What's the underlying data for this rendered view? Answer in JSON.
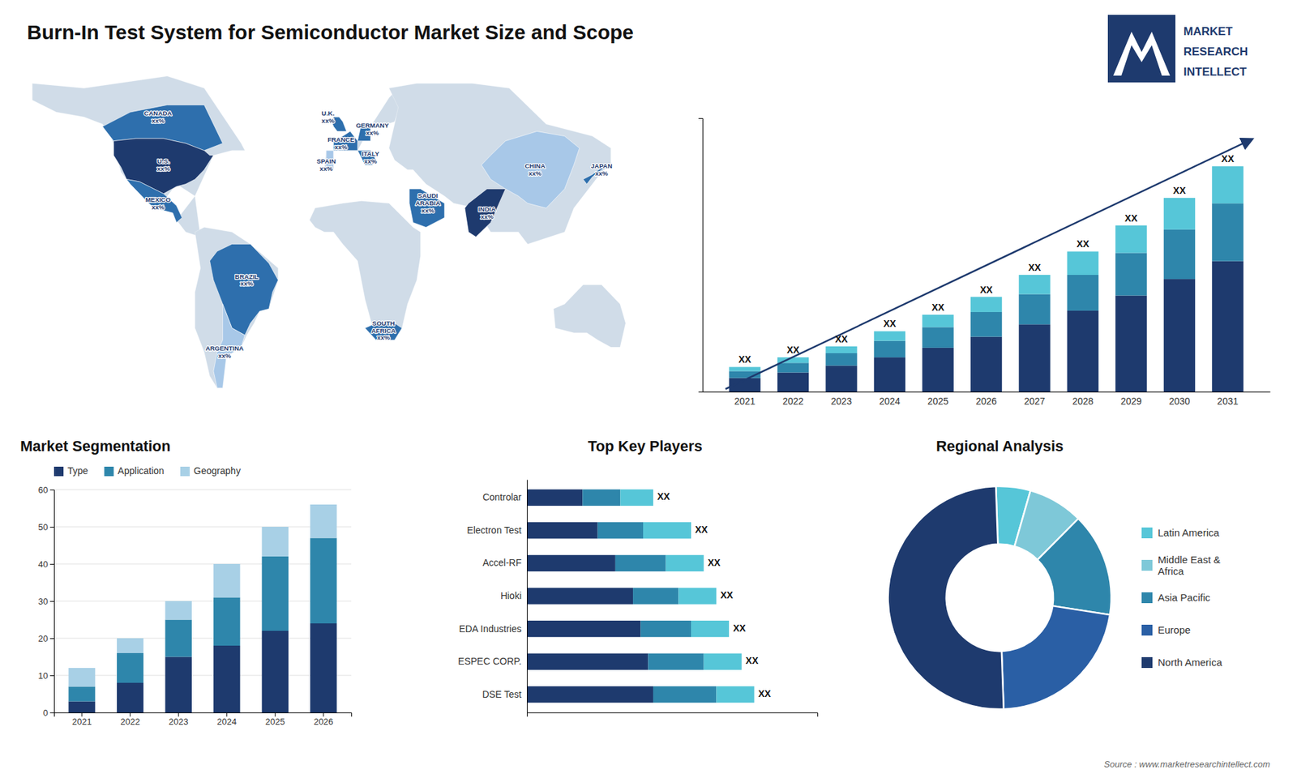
{
  "annotations": [
    "Source : www.marketresearchintellect.com",
    "MARKET",
    "RESEARCH",
    "INTELLECT"
  ],
  "chart_data": [
    {
      "type": "bar",
      "title": "Burn-In Test System for Semiconductor Market Size and Scope",
      "categories": [
        "2021",
        "2022",
        "2023",
        "2024",
        "2025",
        "2026",
        "2027",
        "2028",
        "2029",
        "2030",
        "2031"
      ],
      "series": [
        {
          "color": "#1e3a6e",
          "values": [
            1.0,
            1.4,
            1.9,
            2.5,
            3.2,
            4.0,
            4.9,
            5.9,
            7.0,
            8.2,
            9.5
          ]
        },
        {
          "color": "#2e86ab",
          "values": [
            0.5,
            0.7,
            0.9,
            1.2,
            1.5,
            1.8,
            2.2,
            2.6,
            3.1,
            3.6,
            4.2
          ]
        },
        {
          "color": "#56c6d8",
          "values": [
            0.3,
            0.4,
            0.5,
            0.7,
            0.9,
            1.1,
            1.4,
            1.7,
            2.0,
            2.3,
            2.7
          ]
        }
      ],
      "stacked": true,
      "ylim": [
        0,
        19.9
      ],
      "tick_labels": "x",
      "annotations": [
        "XX",
        "XX",
        "XX",
        "XX",
        "XX",
        "XX",
        "XX",
        "XX",
        "XX",
        "XX",
        "XX"
      ]
    },
    {
      "type": "bar",
      "title": "Market Segmentation",
      "categories": [
        "2021",
        "2022",
        "2023",
        "2024",
        "2025",
        "2026"
      ],
      "series": [
        {
          "name": "Type",
          "color": "#1e3a6e",
          "values": [
            3,
            8,
            15,
            18,
            22,
            24
          ]
        },
        {
          "name": "Application",
          "color": "#2e86ab",
          "values": [
            4,
            8,
            10,
            13,
            20,
            23
          ]
        },
        {
          "name": "Geography",
          "color": "#a8d0e6",
          "values": [
            5,
            4,
            5,
            9,
            8,
            9
          ]
        }
      ],
      "stacked": true,
      "ylim": [
        0,
        60
      ],
      "yticks": [
        0,
        10,
        20,
        30,
        40,
        50,
        60
      ],
      "grid": true,
      "legend": "top"
    },
    {
      "type": "bar",
      "title": "Top Key Players",
      "orientation": "horizontal",
      "categories": [
        "DSE Test",
        "ESPEC CORP.",
        "EDA Industries",
        "Hioki",
        "Accel-RF",
        "Electron Test",
        "Controlar"
      ],
      "series": [
        {
          "color": "#1e3a6e",
          "values": [
            5.0,
            4.8,
            4.5,
            4.2,
            3.5,
            2.8,
            2.2
          ]
        },
        {
          "color": "#2e86ab",
          "values": [
            2.5,
            2.2,
            2.0,
            1.8,
            2.0,
            1.8,
            1.5
          ]
        },
        {
          "color": "#56c6d8",
          "values": [
            1.5,
            1.5,
            1.5,
            1.5,
            1.5,
            1.9,
            1.3
          ]
        }
      ],
      "stacked": true,
      "xlim": [
        0,
        11.5
      ],
      "tick_labels": "y",
      "annotations": [
        "XX",
        "XX",
        "XX",
        "XX",
        "XX",
        "XX",
        "XX"
      ]
    },
    {
      "type": "pie",
      "title": "Regional Analysis",
      "categories": [
        "Latin America",
        "Middle East &\nAfrica",
        "Asia Pacific",
        "Europe",
        "North America"
      ],
      "values": [
        5,
        8,
        15,
        22,
        50
      ],
      "colors": [
        "#56c6d8",
        "#7ec8d8",
        "#2e86ab",
        "#2a5fa5",
        "#1e3a6e"
      ],
      "legend": "right"
    },
    {
      "type": "map",
      "color": "#d0dce8",
      "annotations": [
        "CANADA\nxx%",
        "U.S.\nxx%",
        "MEXICO\nxx%",
        "BRAZIL\nxx%",
        "ARGENTINA\nxx%",
        "U.K.\nxx%",
        "FRANCE\nxx%",
        "SPAIN\nxx%",
        "GERMANY\nxx%",
        "ITALY\nxx%",
        "SAUDI\nARABIA\nxx%",
        "SOUTH\nAFRICA\nxx%",
        "CHINA\nxx%",
        "JAPAN\nxx%",
        "INDIA\nxx%"
      ],
      "colors": [
        "#2e6fad",
        "#1e3a6e",
        "#2e6fad",
        "#2e6fad",
        "#a8c8e8",
        "#2e6fad",
        "#2e6fad",
        "#a8c8e8",
        "#2e6fad",
        "#2e6fad",
        "#2e6fad",
        "#2e6fad",
        "#a8c8e8",
        "#2e6fad",
        "#1e3a6e"
      ]
    }
  ]
}
